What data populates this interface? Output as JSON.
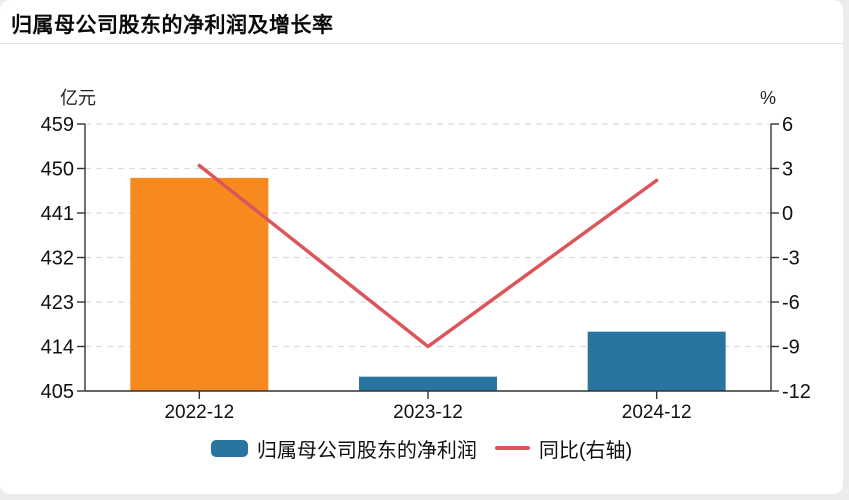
{
  "page": {
    "title": "归属母公司股东的净利润及增长率"
  },
  "colors": {
    "bar_highlight": "#F68A1E",
    "bar_default": "#2875A0",
    "line": "#DC5659",
    "grid": "#dcdcdc",
    "axis": "#333333",
    "tick_text": "#111111",
    "card_bg": "#ffffff",
    "page_bg": "#ececec"
  },
  "chart_data": {
    "type": "combo",
    "title": "归属母公司股东的净利润及增长率",
    "categories": [
      "2022-12",
      "2023-12",
      "2024-12"
    ],
    "series": [
      {
        "name": "归属母公司股东的净利润",
        "type": "bar",
        "axis": "left",
        "values": [
          448.1,
          407.9,
          417.0
        ],
        "colors": [
          "#F68A1E",
          "#2875A0",
          "#2875A0"
        ]
      },
      {
        "name": "同比(右轴)",
        "type": "line",
        "axis": "right",
        "values": [
          3.2,
          -9.0,
          2.2
        ],
        "color": "#DC5659"
      }
    ],
    "left_axis": {
      "unit": "亿元",
      "min": 405,
      "max": 459,
      "ticks": [
        459,
        450,
        441,
        432,
        423,
        414,
        405
      ]
    },
    "right_axis": {
      "unit": "%",
      "min": -12,
      "max": 6,
      "ticks": [
        6,
        3,
        0,
        -3,
        -6,
        -9,
        -12
      ]
    },
    "grid": "dashed horizontal gridlines at every tick",
    "legend_position": "bottom"
  }
}
